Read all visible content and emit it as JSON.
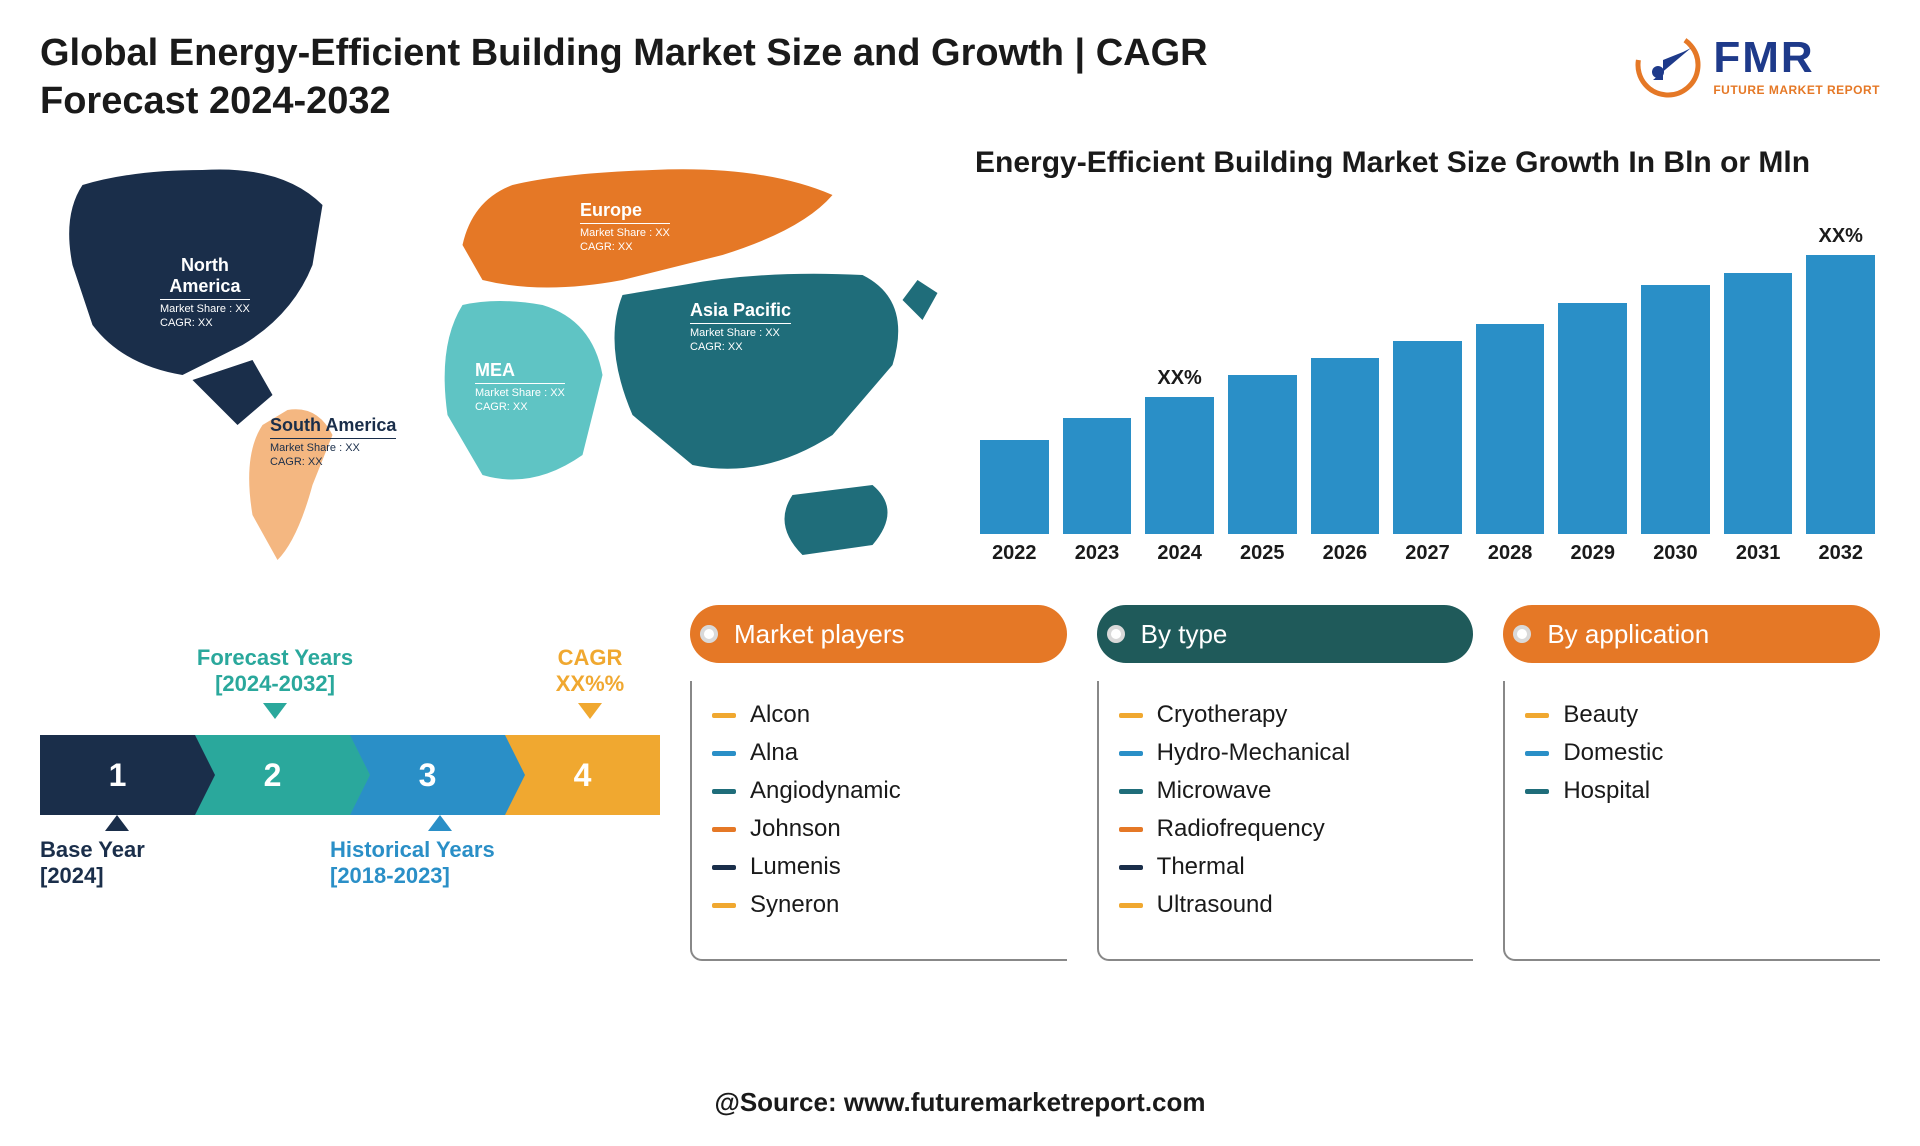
{
  "title": "Global Energy-Efficient Building Market Size and Growth | CAGR Forecast 2024-2032",
  "logo": {
    "main": "FMR",
    "sub": "FUTURE MARKET REPORT"
  },
  "colors": {
    "north_america": "#1a2e4a",
    "south_america": "#f4b781",
    "europe": "#e57826",
    "mea": "#5fc4c4",
    "asia_pacific": "#1f6d7a",
    "bar": "#2a8fc7",
    "seg1": "#1a2e4a",
    "seg2": "#2aa89c",
    "seg3": "#2a8fc7",
    "seg4": "#f0a830",
    "cat_players": "#e57826",
    "cat_type": "#1f5a5a",
    "cat_app": "#e57826"
  },
  "map_regions": {
    "na": {
      "name": "North America",
      "share": "Market Share : XX",
      "cagr": "CAGR: XX"
    },
    "sa": {
      "name": "South America",
      "share": "Market Share : XX",
      "cagr": "CAGR: XX"
    },
    "eu": {
      "name": "Europe",
      "share": "Market Share : XX",
      "cagr": "CAGR: XX"
    },
    "mea": {
      "name": "MEA",
      "share": "Market Share : XX",
      "cagr": "CAGR: XX"
    },
    "ap": {
      "name": "Asia Pacific",
      "share": "Market Share : XX",
      "cagr": "CAGR: XX"
    }
  },
  "chart": {
    "title": "Energy-Efficient Building Market Size Growth In Bln or Mln",
    "type": "bar",
    "years": [
      "2022",
      "2023",
      "2024",
      "2025",
      "2026",
      "2027",
      "2028",
      "2029",
      "2030",
      "2031",
      "2032"
    ],
    "values": [
      110,
      135,
      160,
      185,
      205,
      225,
      245,
      270,
      290,
      305,
      325
    ],
    "max": 350,
    "bar_color": "#2a8fc7",
    "top_labels": [
      {
        "index": 2,
        "text": "XX%"
      },
      {
        "index": 10,
        "text": "XX%"
      }
    ],
    "label_fontsize": 20
  },
  "timeline": {
    "forecast_label": "Forecast Years",
    "forecast_range": "[2024-2032]",
    "cagr_label": "CAGR",
    "cagr_value": "XX%%",
    "base_label": "Base Year",
    "base_range": "[2024]",
    "hist_label": "Historical Years",
    "hist_range": "[2018-2023]",
    "segs": [
      "1",
      "2",
      "3",
      "4"
    ]
  },
  "categories": {
    "players": {
      "label": "Market players",
      "items": [
        "Alcon",
        "Alna",
        "Angiodynamic",
        "Johnson",
        "Lumenis",
        "Syneron"
      ],
      "dash_colors": [
        "#f0a830",
        "#2a8fc7",
        "#1f6d7a",
        "#e57826",
        "#1a2e4a",
        "#f0a830"
      ]
    },
    "type": {
      "label": "By type",
      "items": [
        "Cryotherapy",
        "Hydro-Mechanical",
        "Microwave",
        "Radiofrequency",
        "Thermal",
        "Ultrasound"
      ],
      "dash_colors": [
        "#f0a830",
        "#2a8fc7",
        "#1f6d7a",
        "#e57826",
        "#1a2e4a",
        "#f0a830"
      ]
    },
    "app": {
      "label": "By application",
      "items": [
        "Beauty",
        "Domestic",
        "Hospital"
      ],
      "dash_colors": [
        "#f0a830",
        "#2a8fc7",
        "#1f6d7a"
      ]
    }
  },
  "source": "@Source: www.futuremarketreport.com"
}
